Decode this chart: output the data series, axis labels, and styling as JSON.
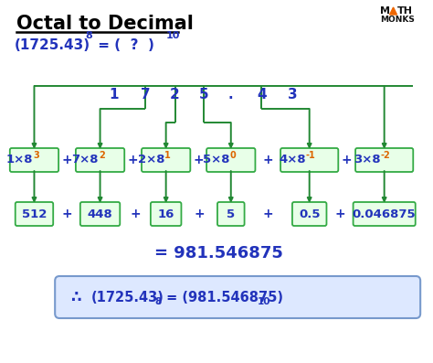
{
  "title": "Octal to Decimal",
  "bg_color": "#ffffff",
  "title_color": "#000000",
  "blue": "#2233bb",
  "green": "#228833",
  "orange": "#dd6600",
  "box_fill": "#e8ffe8",
  "box_edge": "#33aa44",
  "final_fill": "#dde8ff",
  "final_edge": "#7799cc",
  "digits": [
    "1",
    "7",
    "2",
    "5",
    ".",
    "4",
    "3"
  ],
  "base_parts": [
    "1×8",
    "7×8",
    "2×8",
    "5×8",
    "4×8",
    "3×8"
  ],
  "exp_parts": [
    "3",
    "2",
    "1",
    "0",
    "-1",
    "-2"
  ],
  "values": [
    "512",
    "448",
    "16",
    "5",
    "0.5",
    "0.046875"
  ],
  "sum_text": "= 981.546875",
  "conclusion_blue": "(1725.43)",
  "conclusion_sub8": "8",
  "conclusion_mid": " = (981.546875)",
  "conclusion_sub10": "10"
}
